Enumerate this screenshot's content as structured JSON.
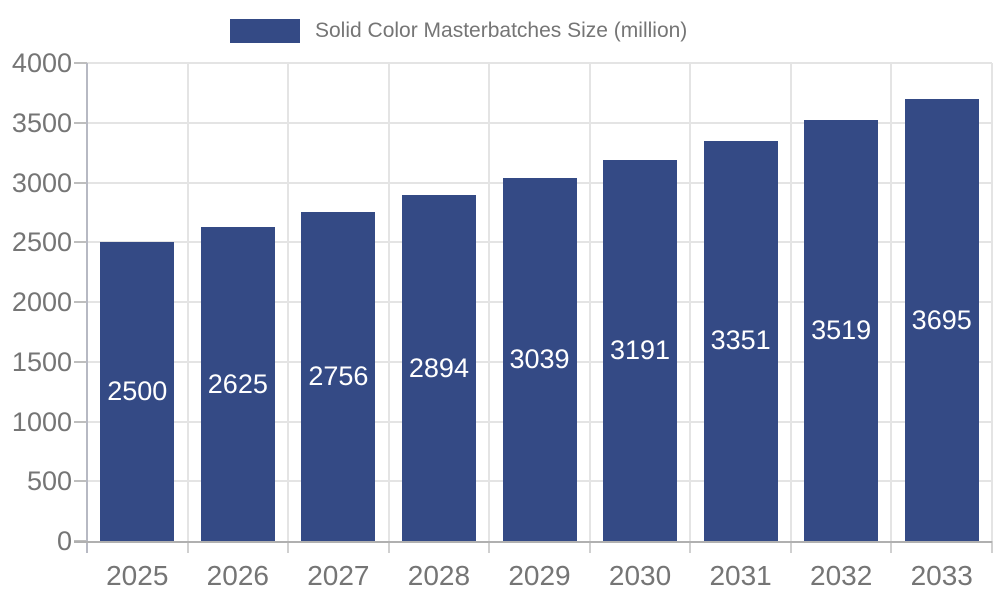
{
  "chart_data": {
    "type": "bar",
    "title": "Solid Color Masterbatches Size (million)",
    "legend_position": "top",
    "categories": [
      "2025",
      "2026",
      "2027",
      "2028",
      "2029",
      "2030",
      "2031",
      "2032",
      "2033"
    ],
    "series": [
      {
        "name": "Solid Color Masterbatches Size (million)",
        "values": [
          2500,
          2625,
          2756,
          2894,
          3039,
          3191,
          3351,
          3519,
          3695
        ]
      }
    ],
    "bar_value_labels": [
      "2500",
      "2625",
      "2756",
      "2894",
      "3039",
      "3191",
      "3351",
      "3519",
      "3695"
    ],
    "xlabel": "",
    "ylabel": "",
    "ylim": [
      0,
      4000
    ],
    "yticks": [
      0,
      500,
      1000,
      1500,
      2000,
      2500,
      3000,
      3500,
      4000
    ],
    "grid": true,
    "colors": {
      "bar": "#344a85",
      "bar_value_text": "#ffffff",
      "tick_text": "#757575",
      "legend_text": "#757575",
      "gridline": "#e4e4e4",
      "axis_line": "#b0b0b0",
      "y_spine": "#b7b9c3",
      "y_tick_mark": "#bebebe",
      "x_tick_mark": "#d0d0d0",
      "background": "#ffffff"
    }
  }
}
